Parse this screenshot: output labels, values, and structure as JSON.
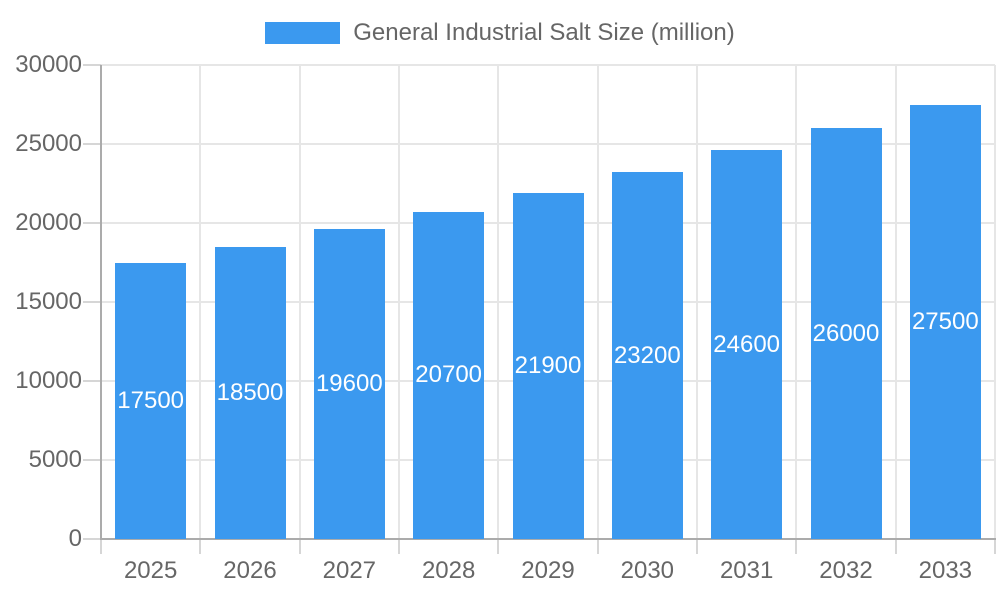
{
  "chart_data": {
    "type": "bar",
    "title": "General Industrial Salt Size (million)",
    "categories": [
      "2025",
      "2026",
      "2027",
      "2028",
      "2029",
      "2030",
      "2031",
      "2032",
      "2033"
    ],
    "series": [
      {
        "name": "General Industrial Salt Size (million)",
        "values": [
          17500,
          18500,
          19600,
          20700,
          21900,
          23200,
          24600,
          26000,
          27500
        ]
      }
    ],
    "xlabel": "",
    "ylabel": "",
    "ylim": [
      0,
      30000
    ],
    "yticks": [
      0,
      5000,
      10000,
      15000,
      20000,
      25000,
      30000
    ],
    "grid": true,
    "legend_position": "top",
    "value_labels_position": "inside-center"
  },
  "colors": {
    "bar": "#3B99EF",
    "grid": "#E6E6E6",
    "tick": "#D6D6D6",
    "axis": "#ABABAB",
    "text": "#666666",
    "value_label": "#FFFFFF",
    "background": "#FFFFFF"
  }
}
